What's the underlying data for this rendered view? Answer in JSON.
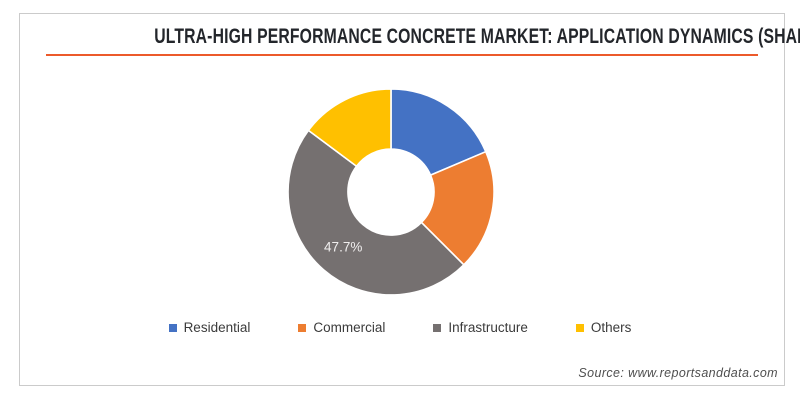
{
  "window": {
    "border_color": "#cbcbcb",
    "background_color": "#ffffff"
  },
  "header": {
    "title": "ULTRA-HIGH PERFORMANCE CONCRETE MARKET: APPLICATION DYNAMICS (SHARE IN PERCENTAGE)",
    "title_color": "#23262b",
    "underline_color": "#ec5a2b"
  },
  "chart_data": {
    "type": "pie",
    "subtype": "donut",
    "title": "ULTRA-HIGH PERFORMANCE CONCRETE MARKET: APPLICATION DYNAMICS (SHARE IN PERCENTAGE)",
    "categories": [
      "Residential",
      "Commercial",
      "Infrastructure",
      "Others"
    ],
    "values": [
      18.6,
      18.9,
      47.7,
      14.8
    ],
    "colors": [
      "#4472c4",
      "#ed7d31",
      "#757070",
      "#ffc000"
    ],
    "data_labels": [
      null,
      null,
      "47.7%",
      null
    ],
    "data_label_color": "#f0eeee",
    "start_angle_deg": 0,
    "inner_radius_ratio": 0.42,
    "separator_color": "#ffffff",
    "legend_position": "bottom",
    "grid": false
  },
  "source": {
    "text": "Source: www.reportsanddata.com"
  }
}
